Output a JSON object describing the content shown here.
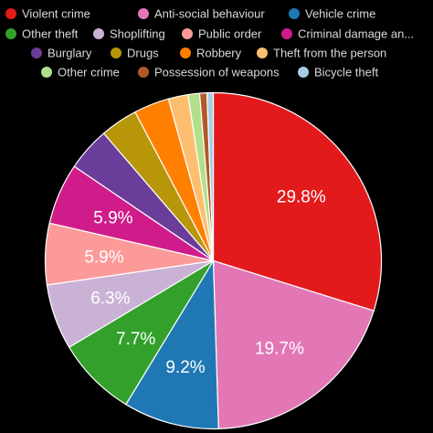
{
  "chart_data": {
    "type": "pie",
    "categories": [
      "Violent crime",
      "Anti-social behaviour",
      "Vehicle crime",
      "Other theft",
      "Shoplifting",
      "Public order",
      "Criminal damage an...",
      "Burglary",
      "Drugs",
      "Robbery",
      "Theft from the person",
      "Other crime",
      "Possession of weapons",
      "Bicycle theft"
    ],
    "values": [
      29.8,
      19.7,
      9.2,
      7.7,
      6.3,
      5.9,
      5.9,
      4.2,
      3.6,
      3.4,
      1.9,
      1.1,
      0.7,
      0.6
    ],
    "colors": [
      "#e31a1c",
      "#e377b6",
      "#1f78b4",
      "#33a02c",
      "#cab2d6",
      "#fb9a99",
      "#d01c8b",
      "#6a3d9a",
      "#b8960a",
      "#ff7f00",
      "#fdbf6f",
      "#b2df8a",
      "#b15928",
      "#a6cee3"
    ],
    "data_labels": [
      "29.8%",
      "19.7%",
      "9.2%",
      "7.7%",
      "6.3%",
      "5.9%",
      "5.9%",
      "",
      "",
      "",
      "",
      "",
      "",
      ""
    ],
    "legend_position": "top",
    "title": ""
  }
}
